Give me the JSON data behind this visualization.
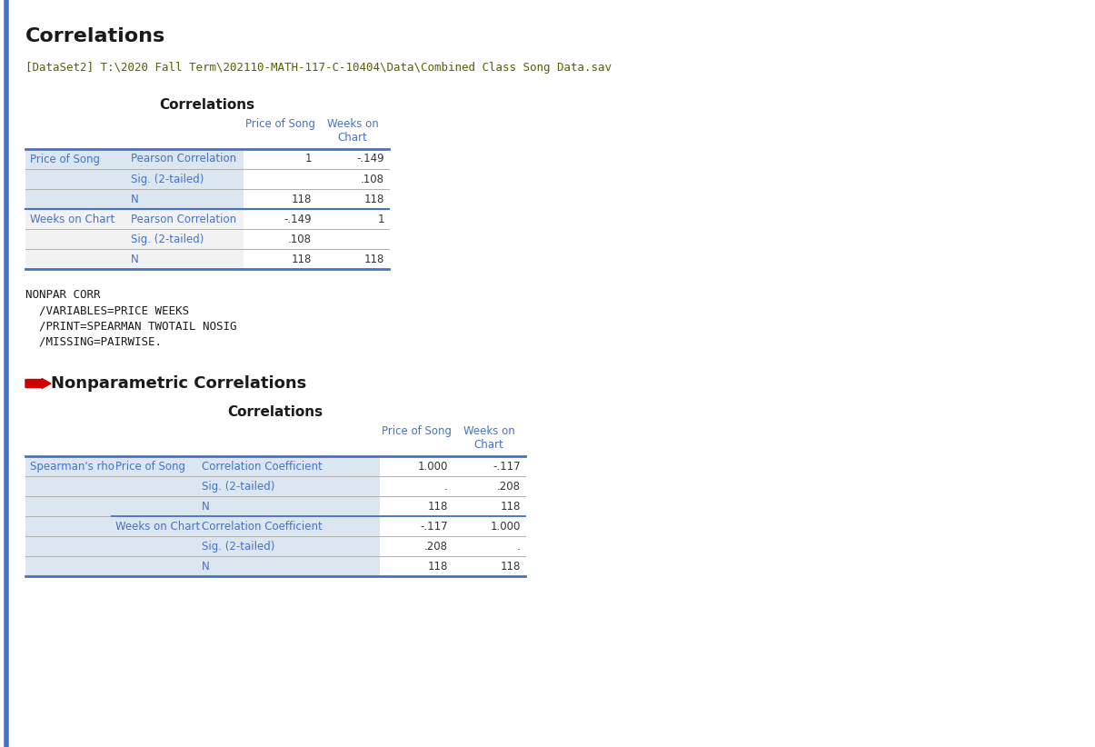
{
  "title": "Correlations",
  "dataset_line": "[DataSet2] T:\\2020 Fall Term\\202110-MATH-117-C-10404\\Data\\Combined Class Song Data.sav",
  "table1_title": "Correlations",
  "table1_rows": [
    [
      "Price of Song",
      "Pearson Correlation",
      "1",
      "-.149"
    ],
    [
      "",
      "Sig. (2-tailed)",
      "",
      ".108"
    ],
    [
      "",
      "N",
      "118",
      "118"
    ],
    [
      "Weeks on Chart",
      "Pearson Correlation",
      "-.149",
      "1"
    ],
    [
      "",
      "Sig. (2-tailed)",
      ".108",
      ""
    ],
    [
      "",
      "N",
      "118",
      "118"
    ]
  ],
  "code_lines": [
    "NONPAR CORR",
    "  /VARIABLES=PRICE WEEKS",
    "  /PRINT=SPEARMAN TWOTAIL NOSIG",
    "  /MISSING=PAIRWISE."
  ],
  "section2_title": "Nonparametric Correlations",
  "table2_title": "Correlations",
  "table2_rows": [
    [
      "Spearman's rho",
      "Price of Song",
      "Correlation Coefficient",
      "1.000",
      "-.117"
    ],
    [
      "",
      "",
      "Sig. (2-tailed)",
      ".",
      ".208"
    ],
    [
      "",
      "",
      "N",
      "118",
      "118"
    ],
    [
      "",
      "Weeks on Chart",
      "Correlation Coefficient",
      "-.117",
      "1.000"
    ],
    [
      "",
      "",
      "Sig. (2-tailed)",
      ".208",
      "."
    ],
    [
      "",
      "",
      "N",
      "118",
      "118"
    ]
  ],
  "bg_color": "#ffffff",
  "header_text_color": "#4472c4",
  "row_label_color": "#4472c4",
  "cell_bg_gray": "#dce6f1",
  "thick_line_color": "#4472c4",
  "thin_line_color": "#b0b0b0",
  "title_color": "#1a1a1a",
  "dataset_color": "#5c5c00",
  "code_color": "#1a1a1a",
  "arrow_color": "#cc0000",
  "data_text_color": "#333333"
}
